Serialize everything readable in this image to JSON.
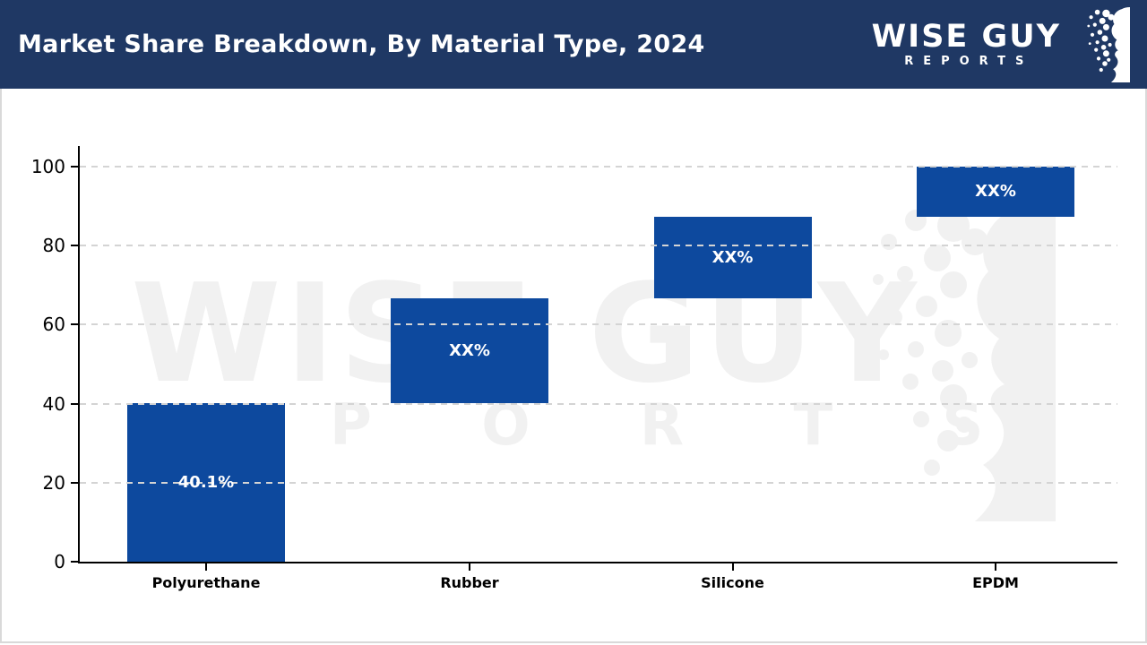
{
  "header": {
    "title": "Market Share Breakdown, By Material Type, 2024",
    "logo": {
      "name": "WISE GUY",
      "sub": "REPORTS"
    }
  },
  "watermark": {
    "line1": "WISE GUY",
    "line2": "P O R T S"
  },
  "chart_data": {
    "type": "bar",
    "subtype": "waterfall",
    "title": "Market Share Breakdown, By Material Type, 2024",
    "categories": [
      "Polyurethane",
      "Rubber",
      "Silicone",
      "EPDM"
    ],
    "segments": [
      {
        "category": "Polyurethane",
        "start": 0,
        "end": 40.1,
        "label": "40.1%"
      },
      {
        "category": "Rubber",
        "start": 40.1,
        "end": 66.6,
        "label": "XX%"
      },
      {
        "category": "Silicone",
        "start": 66.6,
        "end": 87.3,
        "label": "XX%"
      },
      {
        "category": "EPDM",
        "start": 87.3,
        "end": 100,
        "label": "XX%"
      }
    ],
    "ylim": [
      0,
      100
    ],
    "yticks": [
      0,
      20,
      40,
      60,
      80,
      100
    ],
    "xlabel": "",
    "ylabel": "",
    "legend": "none",
    "grid": "horizontal-dashed"
  },
  "colors": {
    "header_bg": "#1f3864",
    "bar": "#0d499e",
    "grid": "#d4d4d4",
    "axis": "#000000",
    "bar_label_text": "#ffffff",
    "watermark": "#f1f1f1"
  }
}
